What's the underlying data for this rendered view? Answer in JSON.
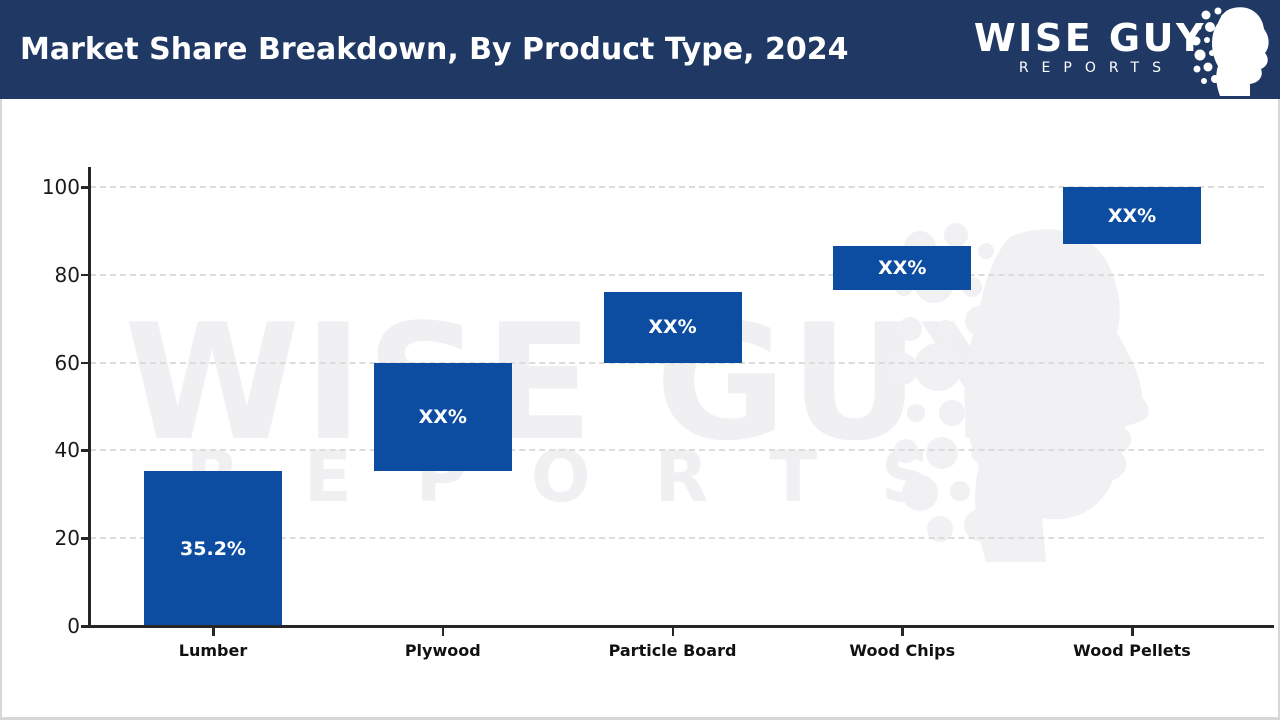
{
  "header": {
    "title": "Market Share Breakdown, By Product Type, 2024",
    "logo": {
      "line1": "WISE GUY",
      "line2": "REPORTS"
    },
    "bg_color": "#1f3864"
  },
  "watermark": {
    "line1": "WISE GUY",
    "line2": "REPORTS"
  },
  "chart_data": {
    "type": "bar",
    "subtype": "waterfall",
    "title": "Market Share Breakdown, By Product Type, 2024",
    "categories": [
      "Lumber",
      "Plywood",
      "Particle Board",
      "Wood Chips",
      "Wood Pellets"
    ],
    "bars": [
      {
        "category": "Lumber",
        "start": 0,
        "end": 35.2,
        "label": "35.2%"
      },
      {
        "category": "Plywood",
        "start": 35.2,
        "end": 60,
        "label": "XX%"
      },
      {
        "category": "Particle Board",
        "start": 60,
        "end": 76,
        "label": "XX%"
      },
      {
        "category": "Wood Chips",
        "start": 76.5,
        "end": 86.5,
        "label": "XX%"
      },
      {
        "category": "Wood Pellets",
        "start": 87,
        "end": 100,
        "label": "XX%"
      }
    ],
    "ylim": [
      0,
      100
    ],
    "yticks": [
      0,
      20,
      40,
      60,
      80,
      100
    ],
    "grid": "horizontal-dashed",
    "legend": null,
    "colors": {
      "bar": "#0d4da1",
      "bar_label": "#ffffff",
      "grid": "#dcdcdc",
      "axis": "#262626",
      "header_bg": "#1f3864"
    }
  }
}
